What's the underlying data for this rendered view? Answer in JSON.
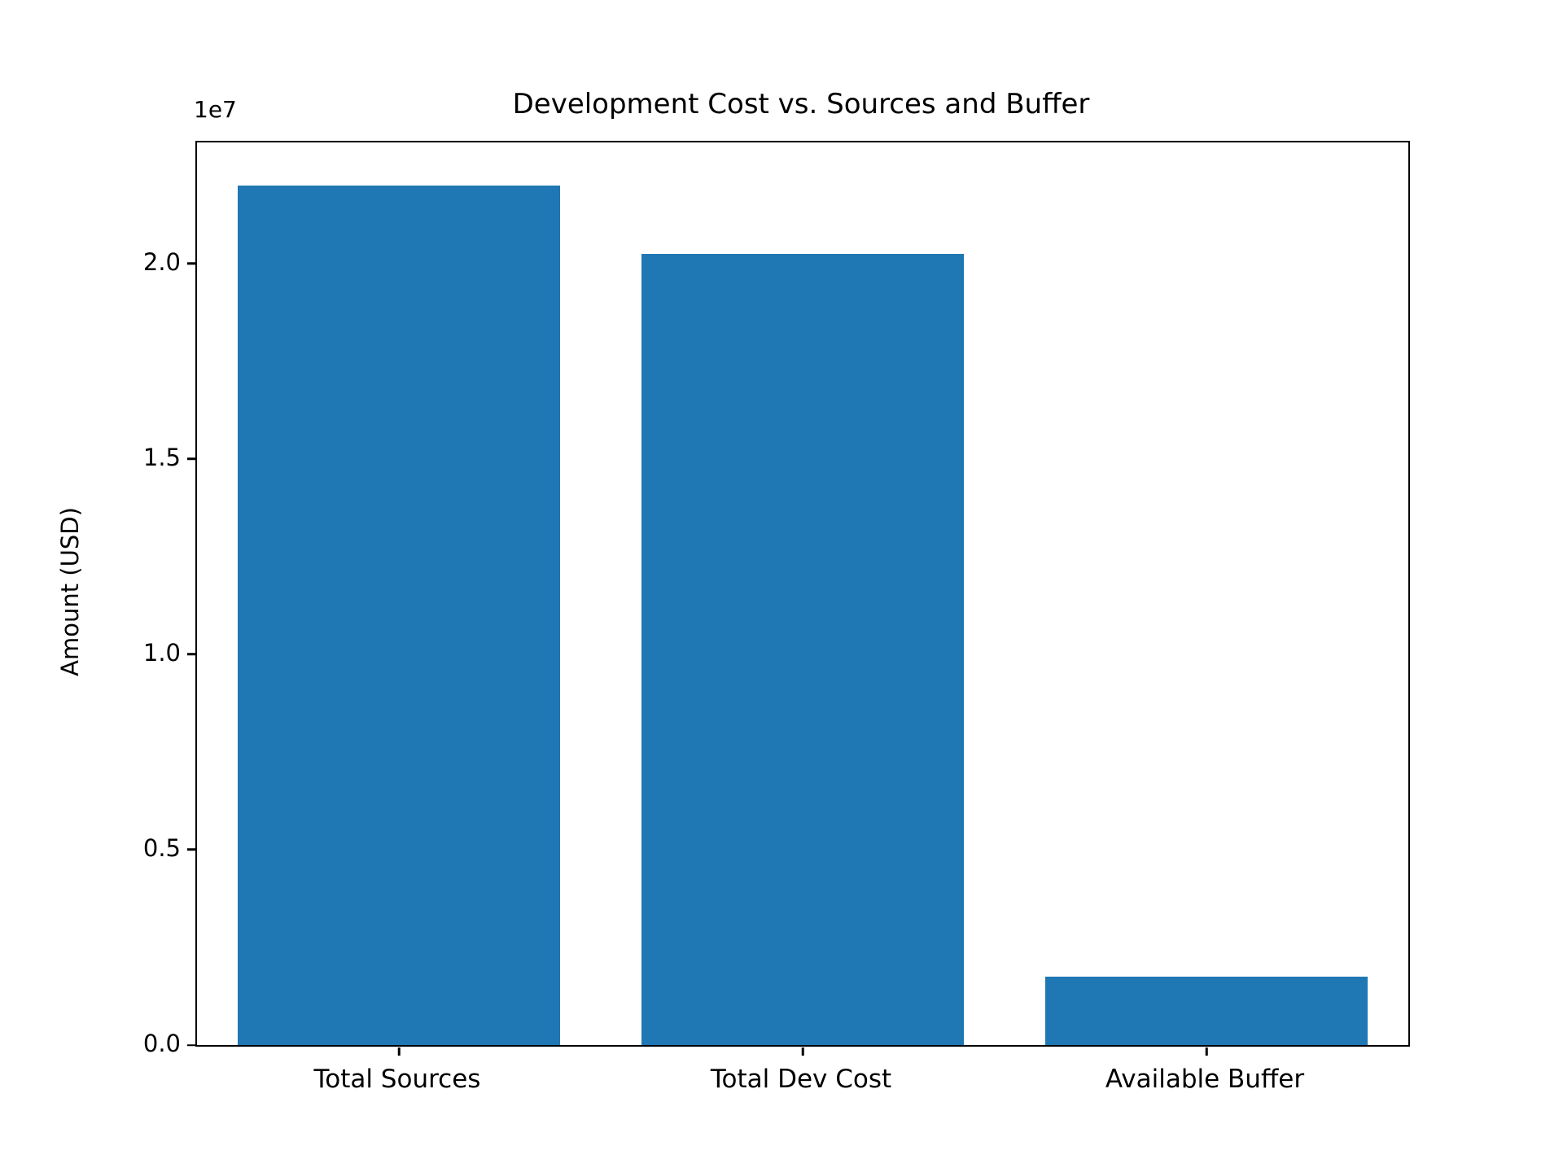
{
  "chart_data": {
    "type": "bar",
    "title": "Development Cost vs. Sources and Buffer",
    "xlabel": "",
    "ylabel": "Amount (USD)",
    "offset_label": "1e7",
    "categories": [
      "Total Sources",
      "Total Dev Cost",
      "Available Buffer"
    ],
    "values": [
      22000000,
      20250000,
      1750000
    ],
    "bar_color": "#1f77b4",
    "ylim": [
      0,
      23100000
    ],
    "yticks": [
      0,
      5000000,
      10000000,
      15000000,
      20000000
    ],
    "ytick_labels": [
      "0.0",
      "0.5",
      "1.0",
      "1.5",
      "2.0"
    ],
    "grid": false,
    "legend_position": "none",
    "bar_width_fraction": 0.8
  }
}
